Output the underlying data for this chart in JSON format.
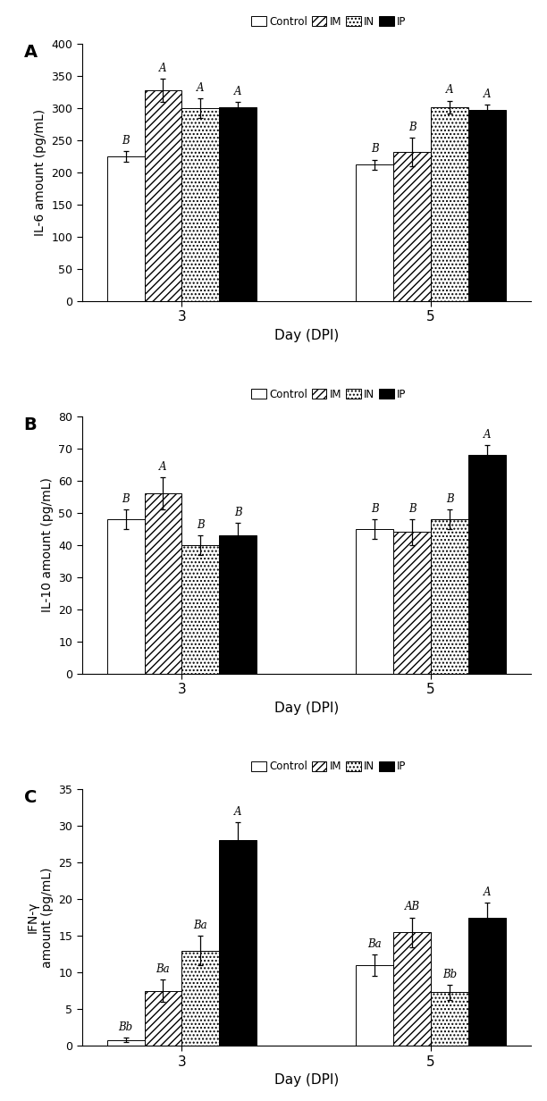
{
  "panel_A": {
    "label": "A",
    "ylabel": "IL-6 amount (pg/mL)",
    "xlabel": "Day (DPI)",
    "ylim": [
      0,
      400
    ],
    "yticks": [
      0,
      50,
      100,
      150,
      200,
      250,
      300,
      350,
      400
    ],
    "days": [
      "3",
      "5"
    ],
    "values": {
      "3": [
        225,
        328,
        300,
        302
      ],
      "5": [
        212,
        232,
        302,
        298
      ]
    },
    "errors": {
      "3": [
        8,
        18,
        15,
        8
      ],
      "5": [
        8,
        22,
        10,
        8
      ]
    },
    "sig_labels": {
      "3": [
        "B",
        "A",
        "A",
        "A"
      ],
      "5": [
        "B",
        "B",
        "A",
        "A"
      ]
    }
  },
  "panel_B": {
    "label": "B",
    "ylabel": "IL-10 amount (pg/mL)",
    "xlabel": "Day (DPI)",
    "ylim": [
      0,
      80
    ],
    "yticks": [
      0,
      10,
      20,
      30,
      40,
      50,
      60,
      70,
      80
    ],
    "days": [
      "3",
      "5"
    ],
    "values": {
      "3": [
        48,
        56,
        40,
        43
      ],
      "5": [
        45,
        44,
        48,
        68
      ]
    },
    "errors": {
      "3": [
        3,
        5,
        3,
        4
      ],
      "5": [
        3,
        4,
        3,
        3
      ]
    },
    "sig_labels": {
      "3": [
        "B",
        "A",
        "B",
        "B"
      ],
      "5": [
        "B",
        "B",
        "B",
        "A"
      ]
    }
  },
  "panel_C": {
    "label": "C",
    "ylabel_line1": "IFN-γ",
    "ylabel_line2": "amount (pg/mL)",
    "xlabel": "Day (DPI)",
    "ylim": [
      0,
      35
    ],
    "yticks": [
      0,
      5,
      10,
      15,
      20,
      25,
      30,
      35
    ],
    "days": [
      "3",
      "5"
    ],
    "values": {
      "3": [
        0.8,
        7.5,
        13,
        28
      ],
      "5": [
        11,
        15.5,
        7.3,
        17.5
      ]
    },
    "errors": {
      "3": [
        0.3,
        1.5,
        2,
        2.5
      ],
      "5": [
        1.5,
        2,
        1,
        2
      ]
    },
    "sig_labels": {
      "3": [
        "Bb",
        "Ba",
        "Ba",
        "A"
      ],
      "5": [
        "Ba",
        "AB",
        "Bb",
        "A"
      ]
    }
  },
  "legend_labels": [
    "Control",
    "IM",
    "IN",
    "IP"
  ],
  "bar_width": 0.15,
  "group_centers": [
    1.0,
    2.0
  ]
}
